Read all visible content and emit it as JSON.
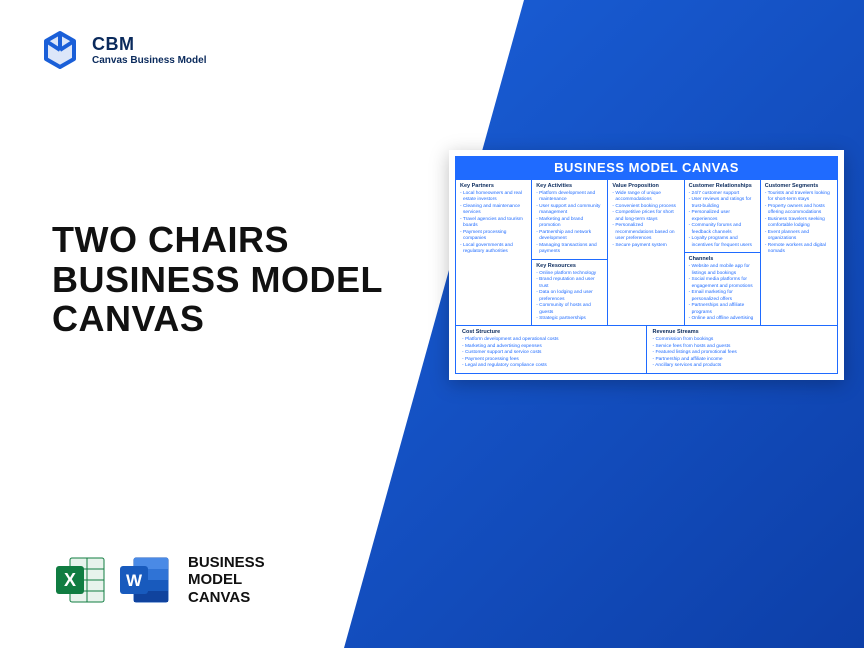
{
  "colors": {
    "panel_grad_a": "#1a5fd8",
    "panel_grad_b": "#0d3fa8",
    "accent_blue": "#1f6bff",
    "dark_navy": "#0a2a5c",
    "excel_green": "#107c41",
    "word_blue": "#185abd"
  },
  "logo": {
    "title": "CBM",
    "subtitle": "Canvas Business Model"
  },
  "main_title_lines": [
    "TWO CHAIRS",
    "BUSINESS MODEL",
    "CANVAS"
  ],
  "bottom_label_lines": [
    "BUSINESS",
    "MODEL",
    "CANVAS"
  ],
  "canvas": {
    "header": "BUSINESS MODEL CANVAS",
    "columns": [
      {
        "stack": [
          {
            "title": "Key Partners",
            "items": [
              "Local homeowners and real estate investors",
              "Cleaning and maintenance services",
              "Travel agencies and tourism boards",
              "Payment processing companies",
              "Local governments and regulatory authorities"
            ]
          }
        ]
      },
      {
        "stack": [
          {
            "title": "Key Activities",
            "items": [
              "Platform development and maintenance",
              "User support and community management",
              "Marketing and brand promotion",
              "Partnership and network development",
              "Managing transactions and payments"
            ]
          },
          {
            "title": "Key Resources",
            "items": [
              "Online platform technology",
              "Brand reputation and user trust",
              "Data on lodging and user preferences",
              "Community of hosts and guests",
              "Strategic partnerships"
            ]
          }
        ]
      },
      {
        "stack": [
          {
            "title": "Value Proposition",
            "items": [
              "Wide range of unique accommodations",
              "Convenient booking process",
              "Competitive prices for short and long-term stays",
              "Personalized recommendations based on user preferences",
              "Secure payment system"
            ]
          }
        ]
      },
      {
        "stack": [
          {
            "title": "Customer Relationships",
            "items": [
              "24/7 customer support",
              "User reviews and ratings for trust-building",
              "Personalized user experiences",
              "Community forums and feedback channels",
              "Loyalty programs and incentives for frequent users"
            ]
          },
          {
            "title": "Channels",
            "items": [
              "Website and mobile app for listings and bookings",
              "Social media platforms for engagement and promotions",
              "Email marketing for personalized offers",
              "Partnerships and affiliate programs",
              "Online and offline advertising"
            ]
          }
        ]
      },
      {
        "stack": [
          {
            "title": "Customer Segments",
            "items": [
              "Tourists and travelers looking for short-term stays",
              "Property owners and hosts offering accommodations",
              "Business travelers seeking comfortable lodging",
              "Event planners and organizations",
              "Remote workers and digital nomads"
            ]
          }
        ]
      }
    ],
    "bottom": [
      {
        "title": "Cost Structure",
        "items": [
          "Platform development and operational costs",
          "Marketing and advertising expenses",
          "Customer support and service costs",
          "Payment processing fees",
          "Legal and regulatory compliance costs"
        ]
      },
      {
        "title": "Revenue Streams",
        "items": [
          "Commission from bookings",
          "Service fees from hosts and guests",
          "Featured listings and promotional fees",
          "Partnership and affiliate income",
          "Ancillary services and products"
        ]
      }
    ]
  }
}
